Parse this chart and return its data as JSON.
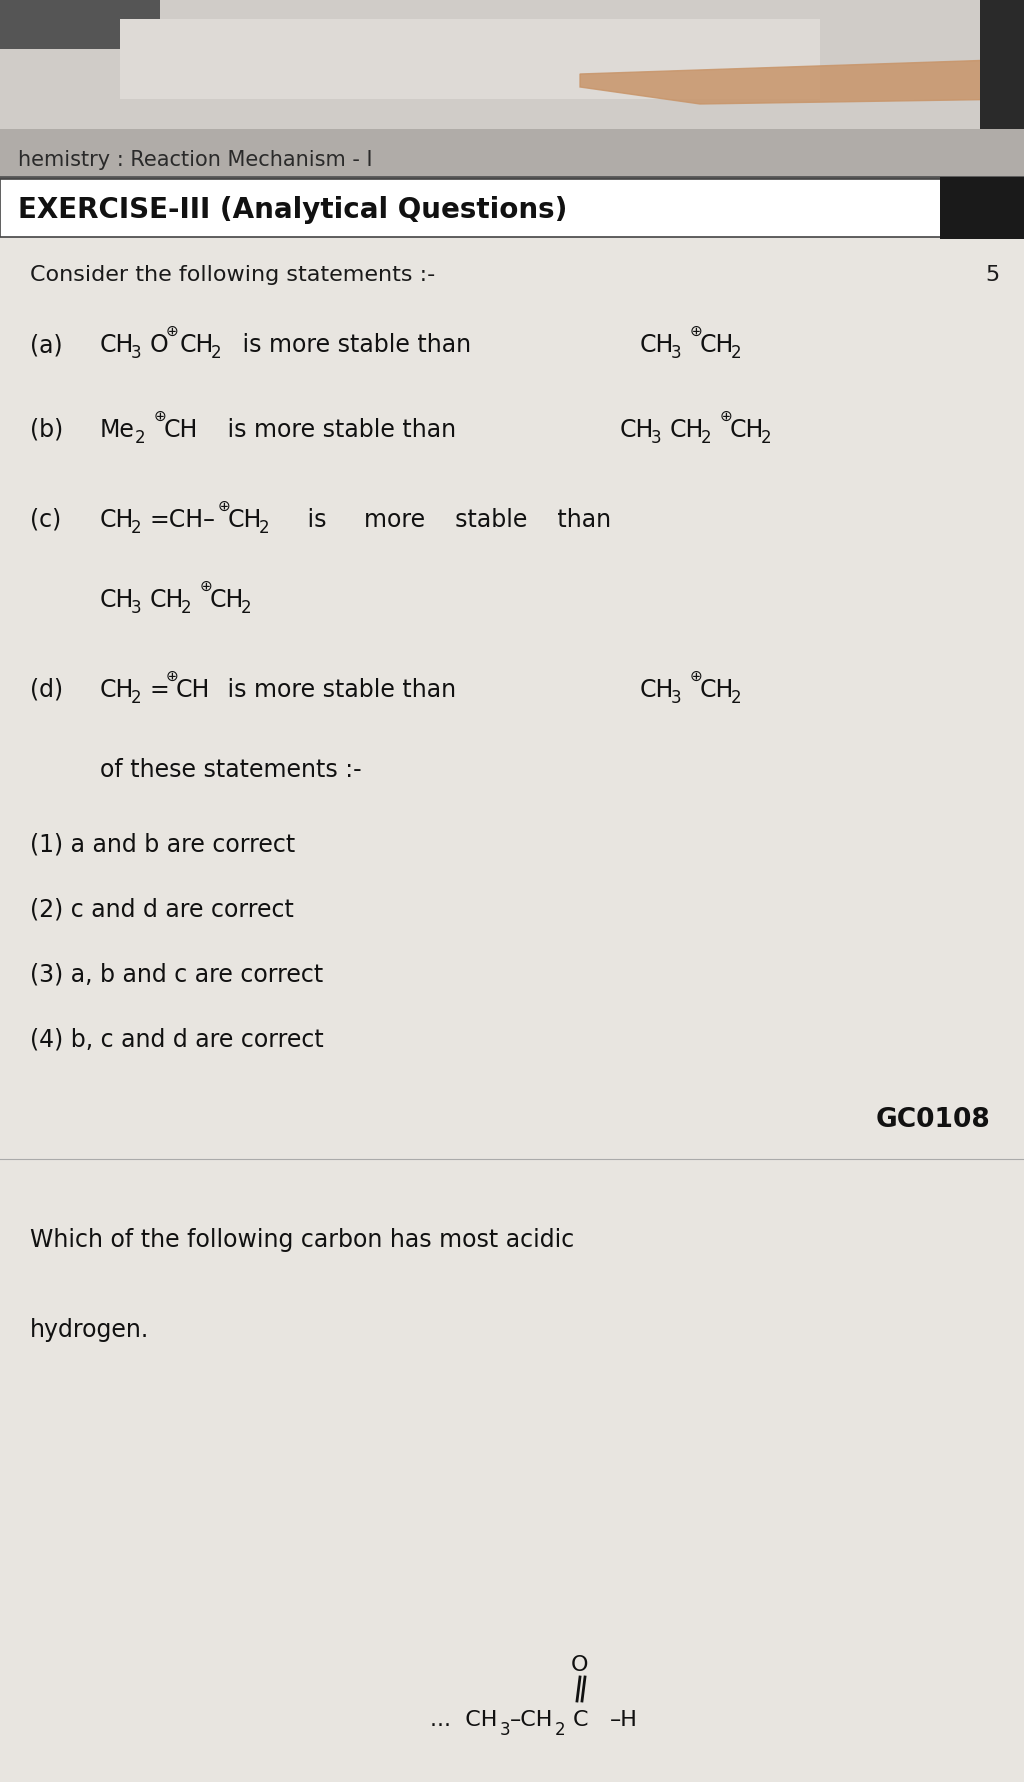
{
  "header_text": "hemistry : Reaction Mechanism - I",
  "section_title": "EXERCISE-III (Analytical Questions)",
  "question_intro": "Consider the following statements :-",
  "question_number_right": "5",
  "options": [
    "(1) a and b are correct",
    "(2) c and d are correct",
    "(3) a, b and c are correct",
    "(4) b, c and d are correct"
  ],
  "code": "GC0108",
  "q2_line1": "Which of the following carbon has most acidic",
  "q2_line2": "hydrogen.",
  "page_bg": "#ebebeb",
  "top_photo_bg": "#c5c0bc",
  "finger_color": "#c8956a",
  "header_band_bg": "#b8b3af",
  "section_bar_bg": "#ffffff",
  "dark_tab_bg": "#1a1a1a",
  "text_color": "#1a1a1a",
  "body_bg": "#e8e5e0"
}
